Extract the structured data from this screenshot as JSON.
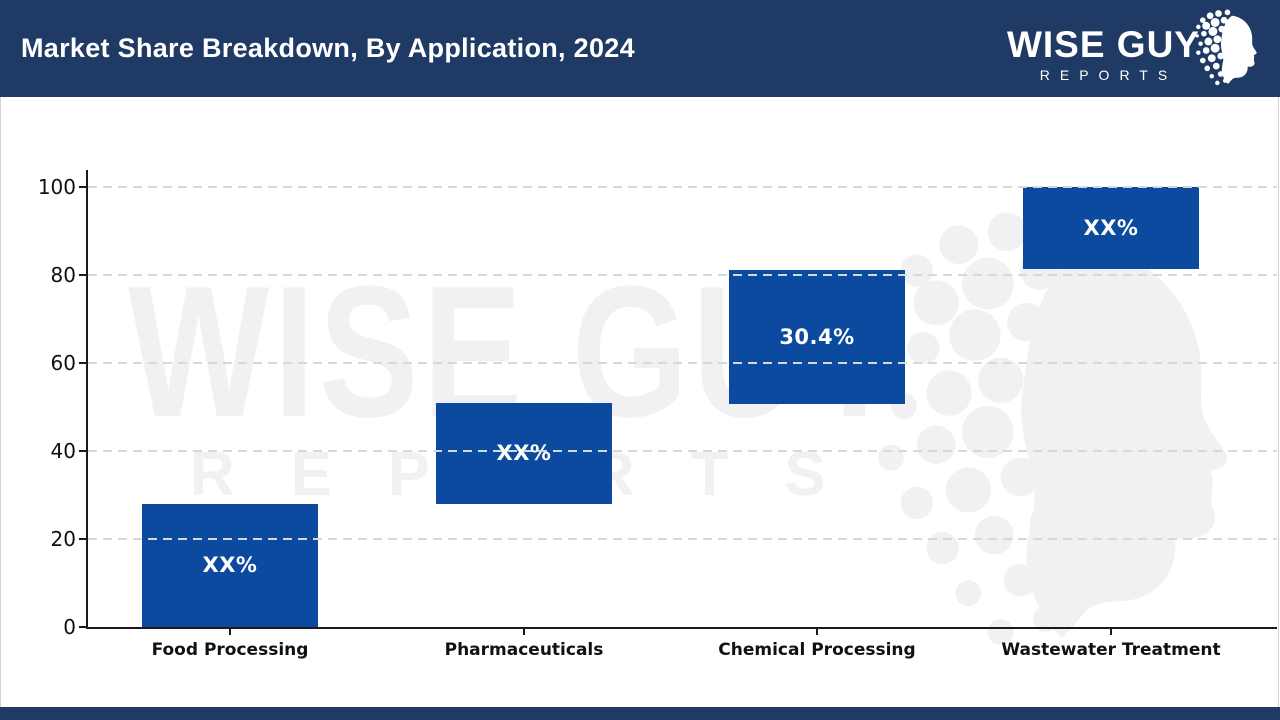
{
  "header": {
    "title": "Market Share Breakdown, By Application, 2024"
  },
  "logo": {
    "line1": "WISE GUY",
    "line2": "REPORTS"
  },
  "watermark": {
    "line1": "WISE GUY",
    "line2": "REPORTS"
  },
  "chart_data": {
    "type": "bar",
    "subtype": "waterfall",
    "title": "Market Share Breakdown, By Application, 2024",
    "categories": [
      "Food Processing",
      "Pharmaceuticals",
      "Chemical Processing",
      "Wastewater Treatment"
    ],
    "segments": [
      {
        "category": "Food Processing",
        "start": 0,
        "end": 28,
        "label": "XX%"
      },
      {
        "category": "Pharmaceuticals",
        "start": 28,
        "end": 50.9,
        "label": "XX%"
      },
      {
        "category": "Chemical Processing",
        "start": 50.7,
        "end": 81.1,
        "label": "30.4%"
      },
      {
        "category": "Wastewater Treatment",
        "start": 81.3,
        "end": 100,
        "label": "XX%"
      }
    ],
    "xlabel": "",
    "ylabel": "",
    "ylim": [
      0,
      100
    ],
    "yticks": [
      0,
      20,
      40,
      60,
      80,
      100
    ],
    "grid": "horizontal-dashed",
    "legend": "none"
  },
  "colors": {
    "navy": "#1f3a64",
    "bar_blue": "#0b4a9e",
    "watermark": "#f1f1f4",
    "gridline": "#d8d8d8",
    "axis": "#1a1a1a",
    "hairline": "#d4d4d4",
    "bar_label": "#ffffff"
  }
}
